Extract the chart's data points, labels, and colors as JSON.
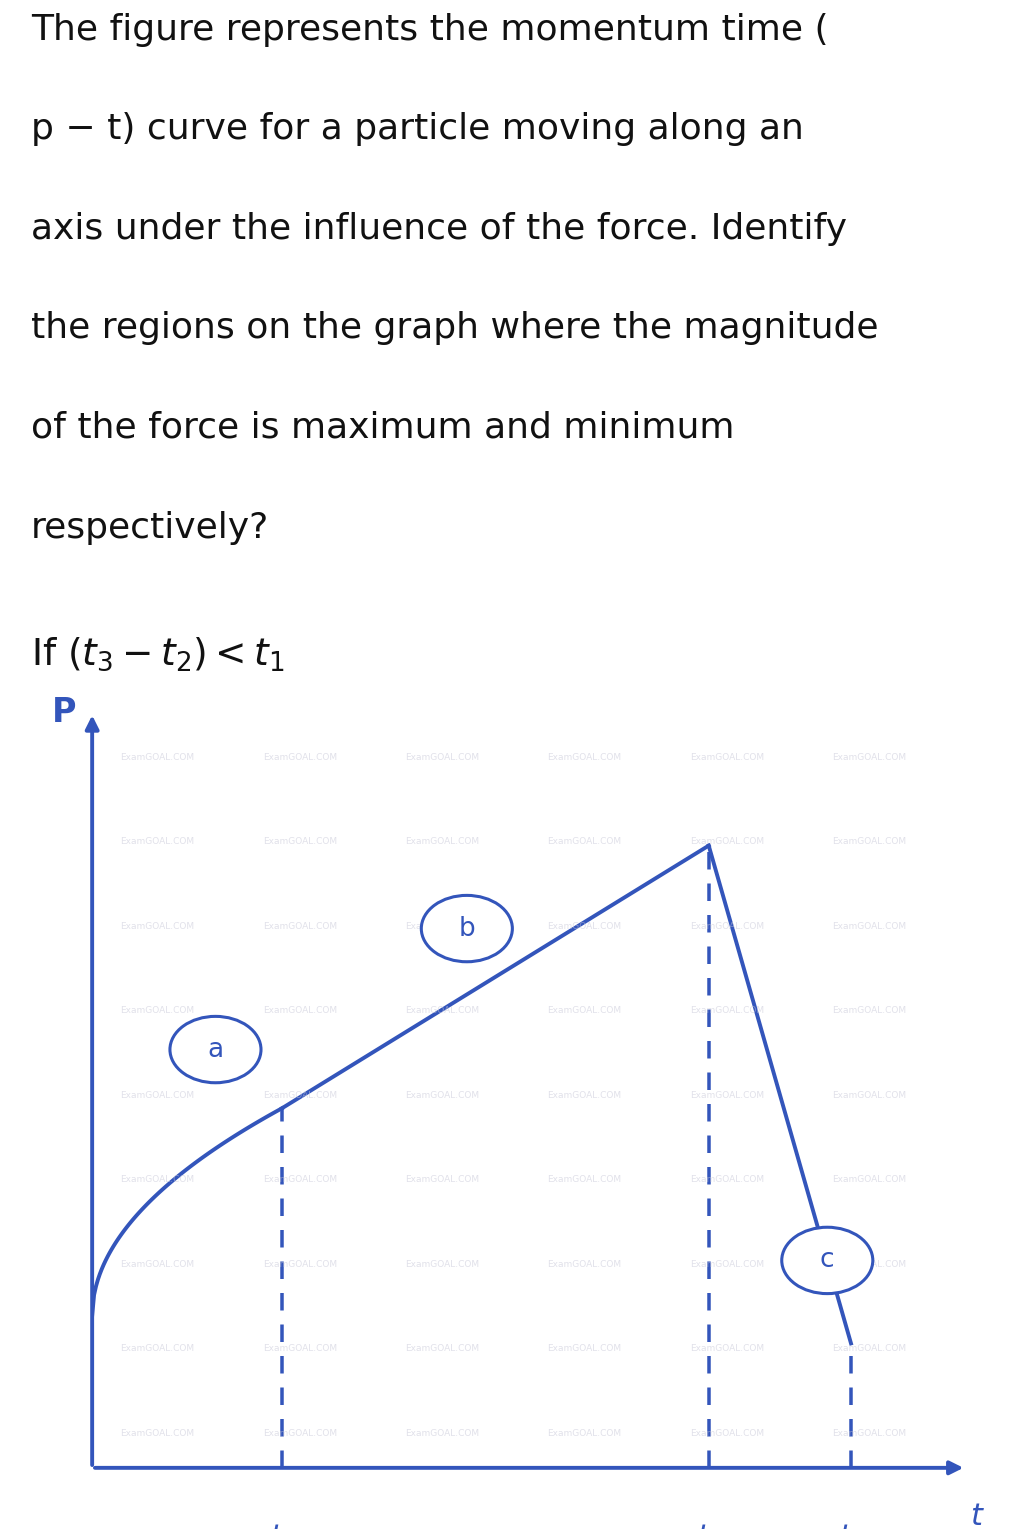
{
  "bg_color": "#ffffff",
  "line_color": "#3355bb",
  "text_color": "#111111",
  "ylabel": "P",
  "xlabel": "t",
  "x_t1": 2.0,
  "x_t2": 6.5,
  "x_t3": 8.0,
  "y_start": 2.2,
  "y_a": 5.2,
  "y_peak": 9.0,
  "y_end": 1.8,
  "xlim": [
    0,
    9.5
  ],
  "ylim": [
    0,
    11.5
  ],
  "label_a": "a",
  "label_b": "b",
  "label_c": "c",
  "font_size_title": 26,
  "font_size_label": 22,
  "font_size_tick": 22,
  "watermark_text": "ExamGOAL.COM",
  "watermark_color": "#c8c8d8",
  "watermark_alpha": 0.55
}
